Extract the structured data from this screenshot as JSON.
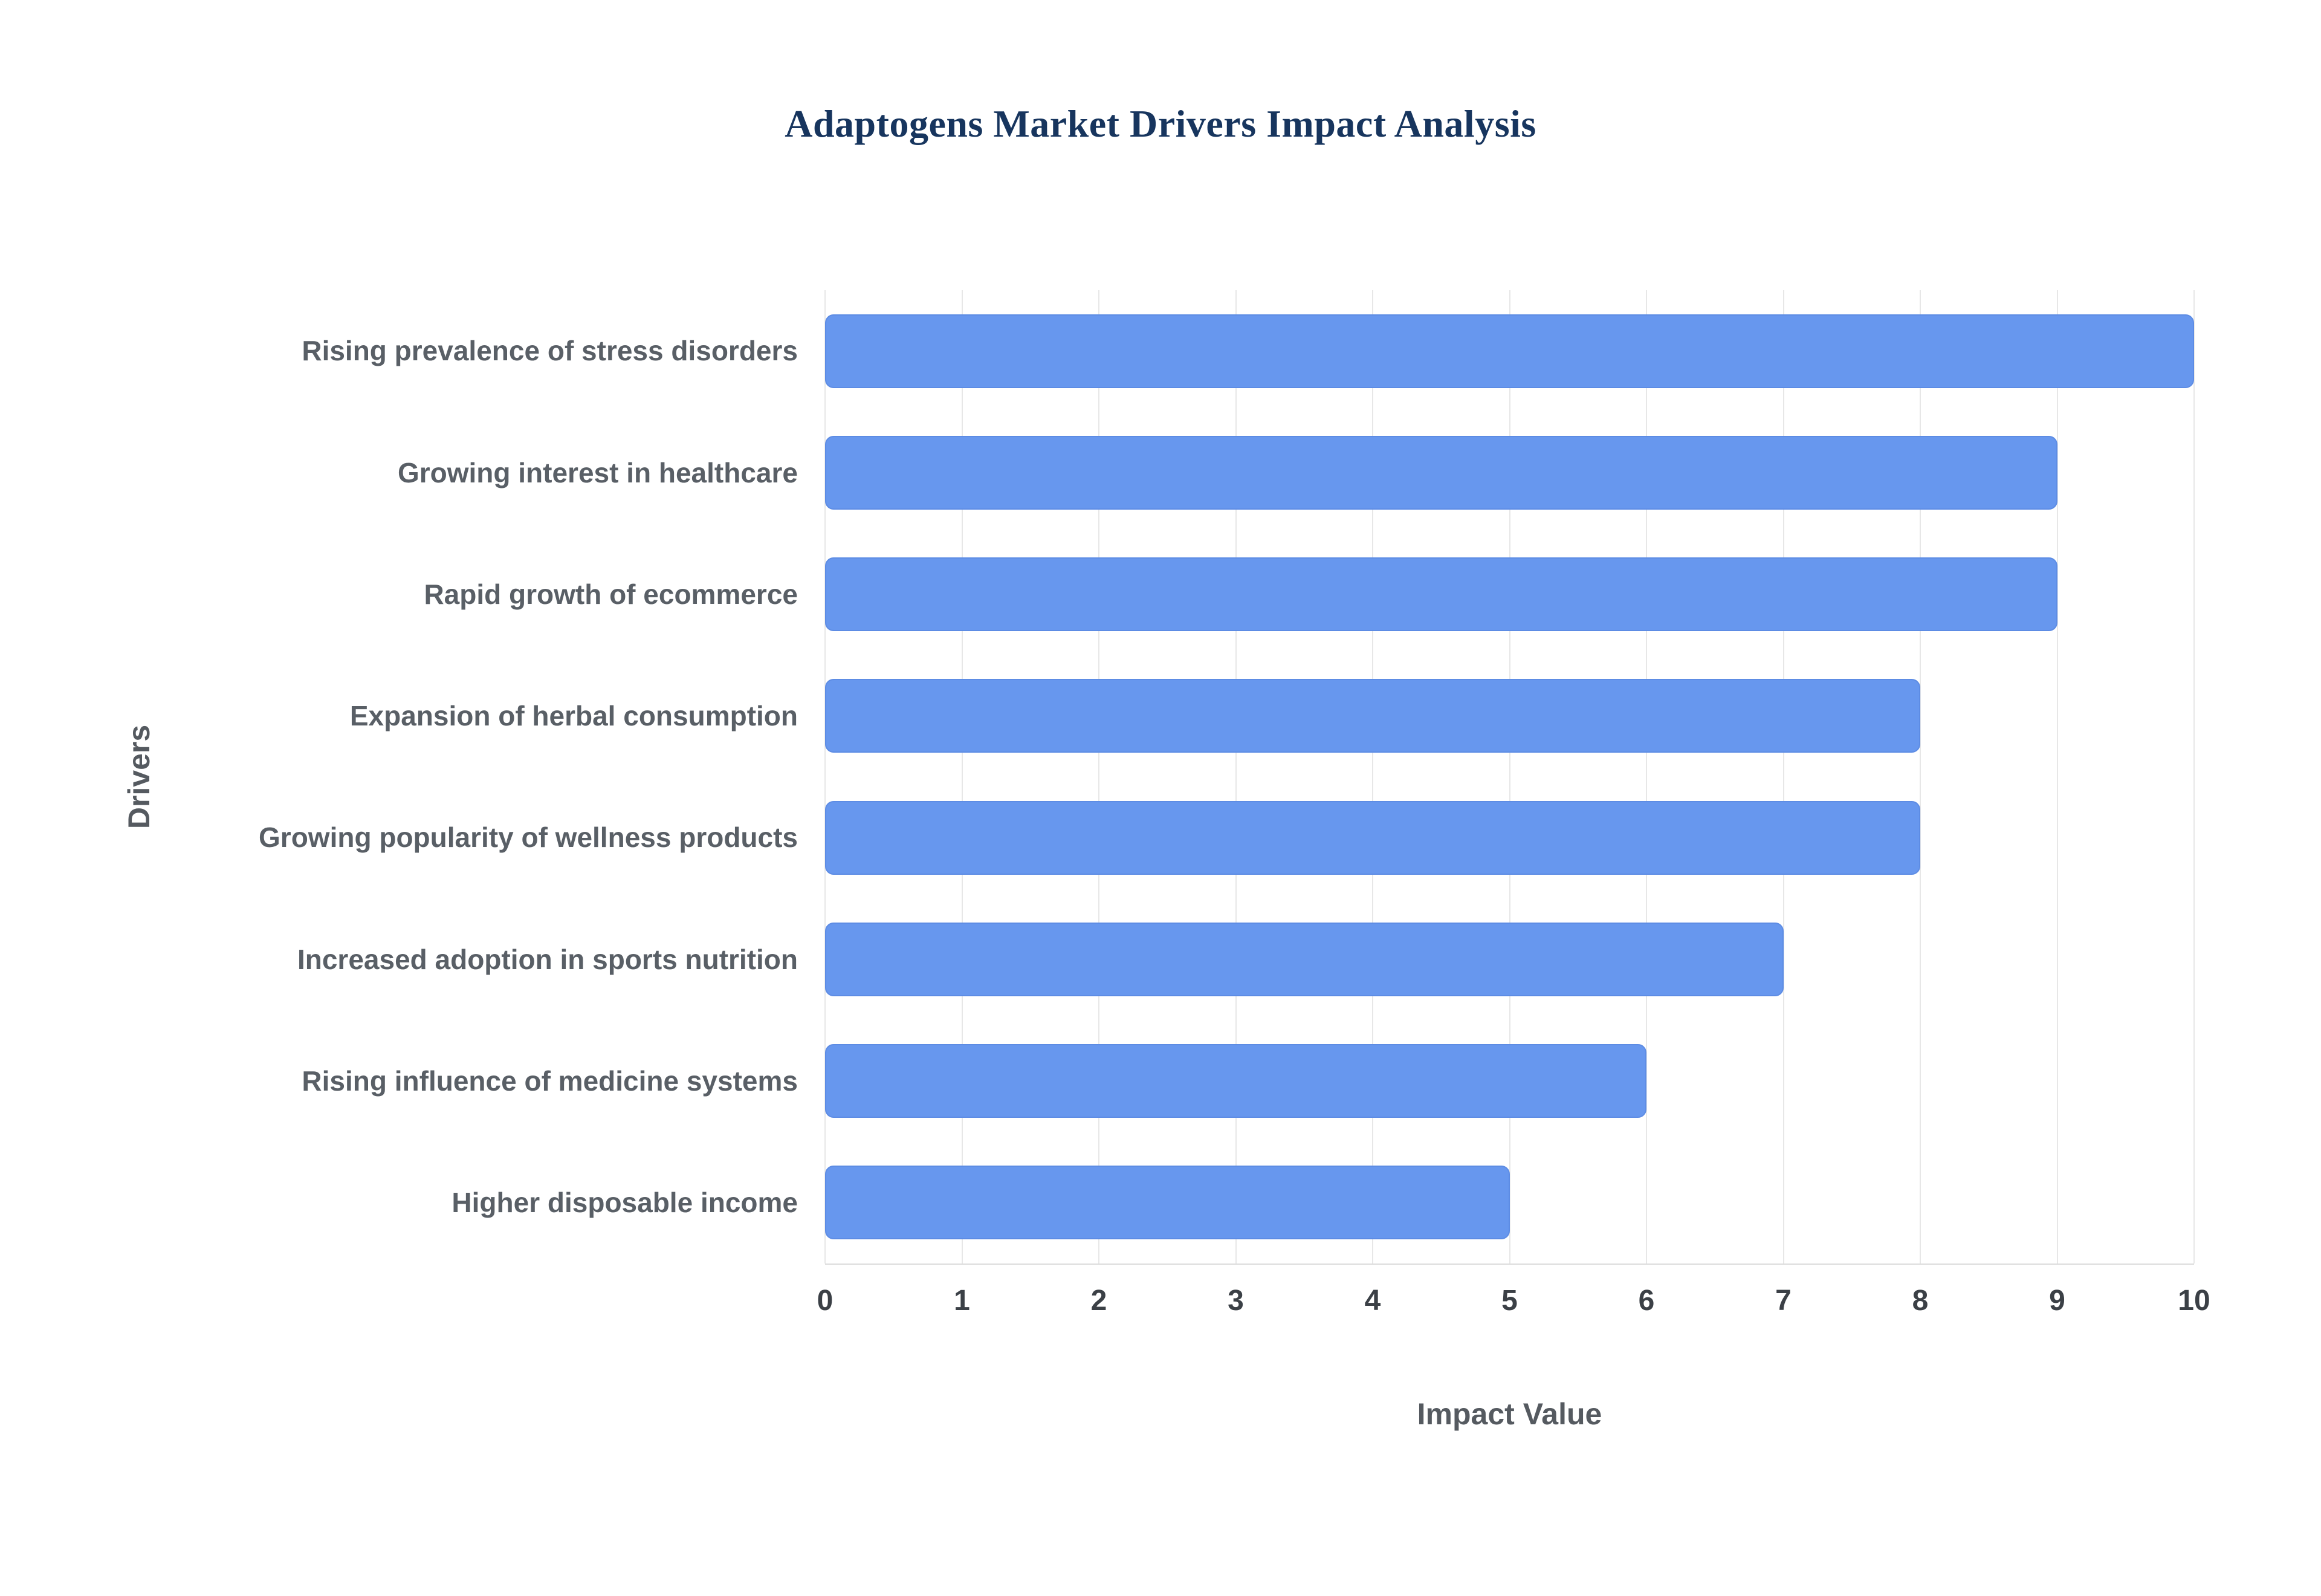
{
  "title": "Adaptogens Market Drivers Impact Analysis",
  "axes": {
    "x_label": "Impact Value",
    "y_label": "Drivers"
  },
  "colors": {
    "bar_fill": "#6797ee",
    "bar_border": "#5d8ce4",
    "title_color": "#17355e",
    "grid_color": "#e7e7e7"
  },
  "chart_data": {
    "type": "bar",
    "orientation": "horizontal",
    "title": "Adaptogens Market Drivers Impact Analysis",
    "xlabel": "Impact Value",
    "ylabel": "Drivers",
    "categories": [
      "Rising prevalence of stress disorders",
      "Growing interest in healthcare",
      "Rapid growth of ecommerce",
      "Expansion of herbal consumption",
      "Growing popularity of wellness products",
      "Increased adoption in sports nutrition",
      "Rising influence of medicine systems",
      "Higher disposable income"
    ],
    "values": [
      10,
      9,
      9,
      8,
      8,
      7,
      6,
      5
    ],
    "xlim": [
      0,
      10
    ],
    "xticks": [
      "0",
      "1",
      "2",
      "3",
      "4",
      "5",
      "6",
      "7",
      "8",
      "9",
      "10"
    ],
    "grid": "vertical",
    "legend": "none"
  }
}
